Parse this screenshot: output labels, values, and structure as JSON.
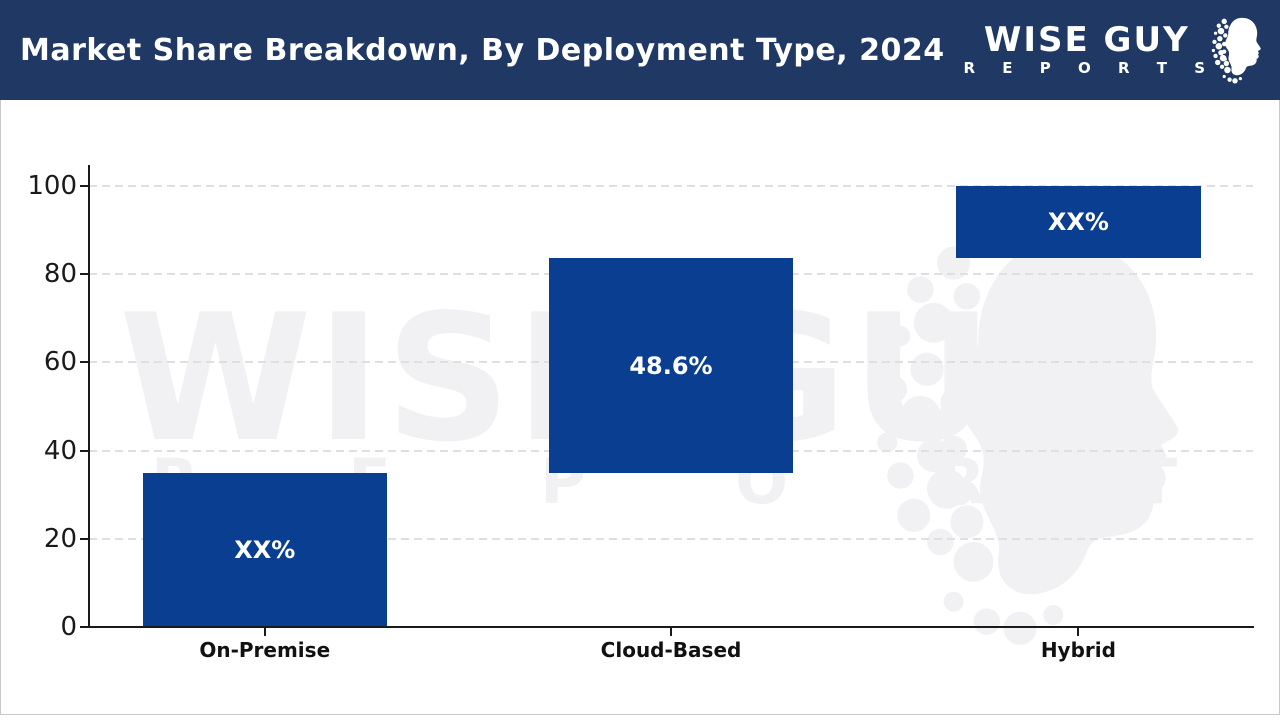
{
  "header": {
    "title": "Market Share Breakdown, By Deployment Type, 2024",
    "bg_color": "#1F3864",
    "logo": {
      "line1": "WISE GUY",
      "line2": "R E P O R T S"
    }
  },
  "watermark": {
    "line1": "WISE GUY",
    "line2": "R E P O R T S"
  },
  "chart_data": {
    "type": "bar",
    "subtype": "floating-segment-waterfall",
    "title": "Market Share Breakdown, By Deployment Type, 2024",
    "categories": [
      "On-Premise",
      "Cloud-Based",
      "Hybrid"
    ],
    "bars": [
      {
        "category": "On-Premise",
        "start": 0,
        "end": 35,
        "label": "XX%"
      },
      {
        "category": "Cloud-Based",
        "start": 35,
        "end": 83.6,
        "label": "48.6%"
      },
      {
        "category": "Hybrid",
        "start": 83.6,
        "end": 100,
        "label": "XX%"
      }
    ],
    "yticks": [
      0,
      20,
      40,
      60,
      80,
      100
    ],
    "ylim": [
      0,
      100
    ],
    "xlabel": "",
    "ylabel": "",
    "grid": "horizontal-dashed",
    "legend": "none",
    "bar_color": "#0A3E91",
    "bar_label_color": "#FFFFFF",
    "axis_color": "#1a1a1a",
    "grid_color": "#dfdfdf"
  }
}
